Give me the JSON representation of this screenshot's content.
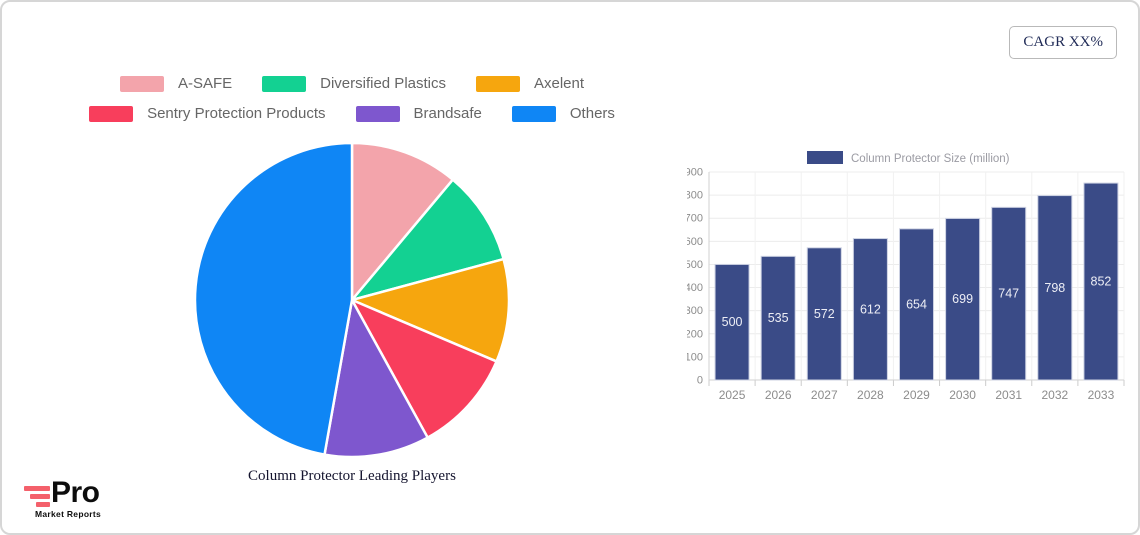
{
  "badge": {
    "label": "CAGR XX%"
  },
  "logo": {
    "title": "Pro",
    "subtitle": "Market Reports"
  },
  "pie": {
    "title": "Column Protector Leading Players"
  },
  "colors": {
    "card_border": "#d6d6d6",
    "bar": "#3A4B87",
    "legend_text": "#666666",
    "axis_text": "#8c8c8c",
    "grid_line": "#ececec",
    "axis_line": "#d2d2d2",
    "logo_accent": "#f4606b"
  },
  "chart_data": [
    {
      "type": "pie",
      "title": "Column Protector Leading Players",
      "labels": [
        "A-SAFE",
        "Diversified Plastics",
        "Axelent",
        "Sentry Protection Products",
        "Brandsafe",
        "Others"
      ],
      "values": [
        11.1,
        9.7,
        10.6,
        10.6,
        10.8,
        47.2
      ],
      "unit": "percent-estimated",
      "colors": [
        "#F3A4AB",
        "#13D192",
        "#F6A60E",
        "#F83E5C",
        "#7E57CE",
        "#0F86F5"
      ],
      "start_angle_deg": 0,
      "direction": "clockwise",
      "legend_position": "top",
      "slice_separator_color": "#ffffff"
    },
    {
      "type": "bar",
      "title": "Column Protector Size (million)",
      "categories": [
        "2025",
        "2026",
        "2027",
        "2028",
        "2029",
        "2030",
        "2031",
        "2032",
        "2033"
      ],
      "values": [
        500,
        535,
        572,
        612,
        654,
        699,
        747,
        798,
        852
      ],
      "bar_color": "#3A4B87",
      "bar_border_color": "#ccd1e2",
      "value_label_color": "#edeef5",
      "xlabel": "",
      "ylabel": "",
      "ylim": [
        0,
        900
      ],
      "ytick_step": 100,
      "yticks": [
        0,
        100,
        200,
        300,
        400,
        500,
        600,
        700,
        800,
        900
      ],
      "grid": true,
      "legend_position": "top",
      "value_labels": "inside-center"
    }
  ]
}
